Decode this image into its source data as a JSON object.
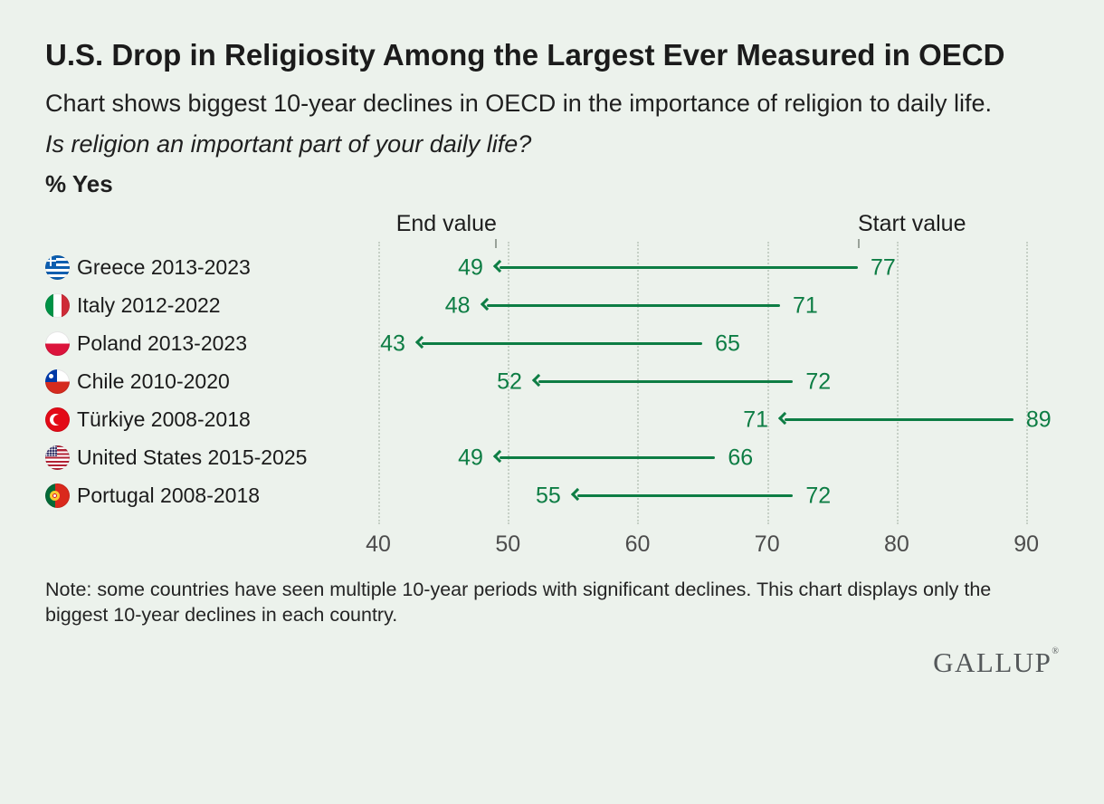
{
  "header": {
    "title": "U.S. Drop in Religiosity Among the Largest Ever Measured in OECD",
    "subtitle": "Chart shows biggest 10-year declines in OECD in the importance of religion to daily life.",
    "question": "Is religion an important part of your daily life?",
    "unit": "% Yes"
  },
  "chart_data": {
    "type": "dumbbell",
    "title": "U.S. Drop in Religiosity Among the Largest Ever Measured in OECD",
    "subtitle": "Chart shows biggest 10-year declines in OECD in the importance of religion to daily life.",
    "question": "Is religion an important part of your daily life?",
    "unit": "% Yes",
    "legend": {
      "end_label": "End value",
      "start_label": "Start value"
    },
    "axis": {
      "min": 40,
      "max": 90,
      "ticks": [
        40,
        50,
        60,
        70,
        80,
        90
      ],
      "grid": true
    },
    "rows": [
      {
        "label": "Greece 2013-2023",
        "country": "Greece",
        "period": "2013-2023",
        "flag": "greece",
        "start": 77,
        "end": 49
      },
      {
        "label": "Italy 2012-2022",
        "country": "Italy",
        "period": "2012-2022",
        "flag": "italy",
        "start": 71,
        "end": 48
      },
      {
        "label": "Poland 2013-2023",
        "country": "Poland",
        "period": "2013-2023",
        "flag": "poland",
        "start": 65,
        "end": 43
      },
      {
        "label": "Chile 2010-2020",
        "country": "Chile",
        "period": "2010-2020",
        "flag": "chile",
        "start": 72,
        "end": 52
      },
      {
        "label": "Türkiye 2008-2018",
        "country": "Türkiye",
        "period": "2008-2018",
        "flag": "turkiye",
        "start": 89,
        "end": 71
      },
      {
        "label": "United States 2015-2025",
        "country": "United States",
        "period": "2015-2025",
        "flag": "us",
        "start": 66,
        "end": 49
      },
      {
        "label": "Portugal 2008-2018",
        "country": "Portugal",
        "period": "2008-2018",
        "flag": "portugal",
        "start": 72,
        "end": 55
      }
    ],
    "colors": {
      "arrow": "#0d7d44",
      "value_text": "#0d7d44",
      "grid": "#c6d0c6",
      "axis_text": "#4c4c4c",
      "background": "#ecf2ec"
    }
  },
  "note": "Note: some countries have seen multiple 10-year periods with significant declines. This chart displays only the biggest 10-year declines in each country.",
  "footer": {
    "brand": "GALLUP",
    "brand_mark": "®"
  }
}
